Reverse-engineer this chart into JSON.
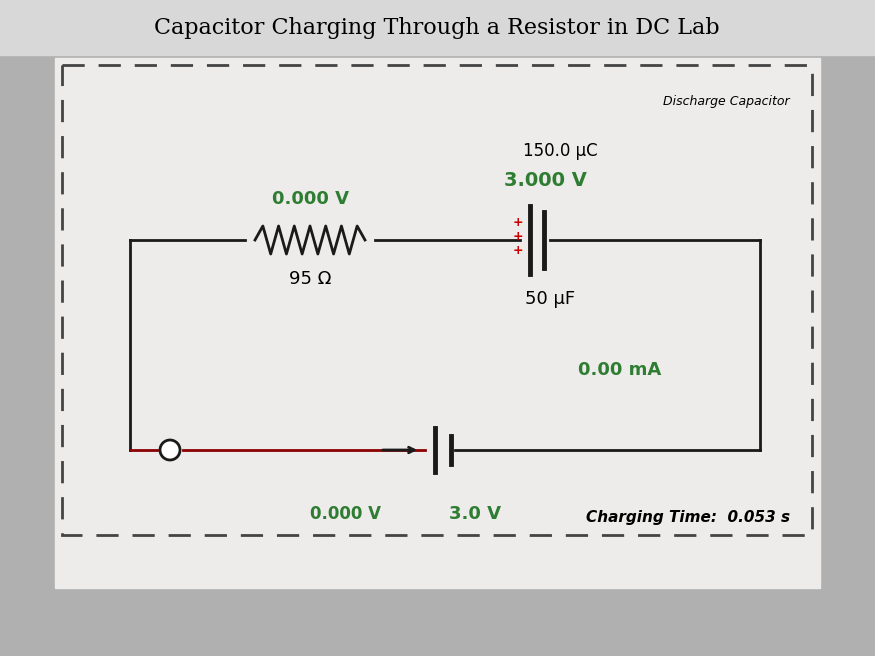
{
  "title": "Capacitor Charging Through a Resistor in DC Lab",
  "title_fontsize": 16,
  "bg_color": "#b0b0b0",
  "circuit_bg": "#eeecea",
  "dashed_border_color": "#444444",
  "circuit_line_color": "#1a1a1a",
  "resistor_voltage": "0.000 V",
  "resistor_ohms": "95 Ω",
  "capacitor_charge": "150.0 μC",
  "capacitor_voltage": "3.000 V",
  "capacitor_farads": "50 μF",
  "current_label": "0.00 mA",
  "battery_voltage_label": "3.0 V",
  "battery_voltage2": "0.000 V",
  "discharge_label": "Discharge Capacitor",
  "charging_time": "Charging Time:  0.053 s",
  "green_color": "#2e7d32",
  "dark_red_color": "#8b0000",
  "red_color": "#cc0000"
}
